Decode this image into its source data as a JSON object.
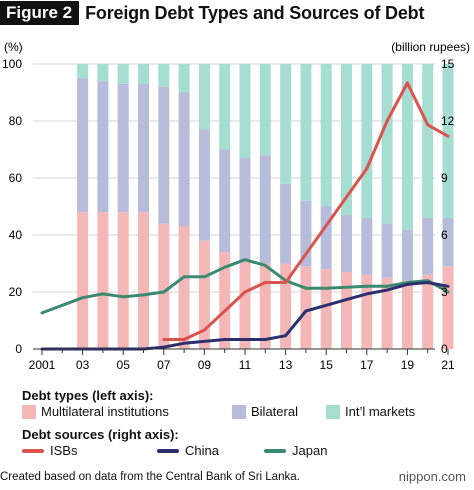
{
  "figure": {
    "badge": "Figure 2",
    "title": "Foreign Debt Types and Sources of Debt"
  },
  "axes": {
    "left_unit": "(%)",
    "right_unit": "(billion rupees)",
    "left_ticks": [
      "0",
      "20",
      "40",
      "60",
      "80",
      "100"
    ],
    "right_ticks": [
      "0",
      "3",
      "6",
      "9",
      "12",
      "15"
    ],
    "x_ticks": [
      "2001",
      "03",
      "05",
      "07",
      "09",
      "11",
      "13",
      "15",
      "17",
      "19",
      "21"
    ]
  },
  "legend": {
    "types_title": "Debt types (left axis):",
    "types": [
      {
        "label": "Multilateral institutions",
        "color": "#f3b7b7"
      },
      {
        "label": "Bilateral",
        "color": "#b8bcdb"
      },
      {
        "label": "Int’l markets",
        "color": "#a6ddd3"
      }
    ],
    "sources_title": "Debt sources (right axis):",
    "sources": [
      {
        "label": "ISBs",
        "color": "#d9534f"
      },
      {
        "label": "China",
        "color": "#2e2f6e"
      },
      {
        "label": "Japan",
        "color": "#3a8a72"
      }
    ]
  },
  "source_note": "Created based on data from the Central Bank of Sri Lanka.",
  "brand": "nippon.com",
  "chart_data": {
    "type": "bar+line",
    "years": [
      2001,
      2002,
      2003,
      2004,
      2005,
      2006,
      2007,
      2008,
      2009,
      2010,
      2011,
      2012,
      2013,
      2014,
      2015,
      2016,
      2017,
      2018,
      2019,
      2020,
      2021
    ],
    "bar_years": [
      2003,
      2004,
      2005,
      2006,
      2007,
      2008,
      2009,
      2010,
      2011,
      2012,
      2013,
      2014,
      2015,
      2016,
      2017,
      2018,
      2019,
      2020,
      2021
    ],
    "stacked_percent": {
      "multilateral": [
        48,
        48,
        48,
        48,
        44,
        43,
        38,
        34,
        31,
        30,
        30,
        29,
        28,
        27,
        26,
        25,
        24,
        26,
        29
      ],
      "bilateral": [
        47,
        46,
        45,
        45,
        48,
        47,
        39,
        36,
        36,
        38,
        28,
        23,
        22,
        20,
        20,
        19,
        18,
        20,
        17
      ],
      "intl_markets": [
        5,
        6,
        7,
        7,
        8,
        10,
        23,
        30,
        33,
        32,
        42,
        48,
        50,
        53,
        54,
        56,
        58,
        54,
        54
      ]
    },
    "sources_billion_rupees": {
      "ISBs": [
        null,
        null,
        null,
        null,
        null,
        null,
        0.5,
        0.5,
        1.0,
        2.0,
        3.0,
        3.5,
        3.5,
        5.0,
        6.5,
        8.0,
        9.5,
        12.0,
        14.0,
        11.8,
        11.2
      ],
      "China": [
        0,
        0,
        0,
        0,
        0,
        0,
        0.1,
        0.3,
        0.4,
        0.5,
        0.5,
        0.5,
        0.7,
        2.0,
        2.3,
        2.6,
        2.9,
        3.1,
        3.4,
        3.5,
        3.3
      ],
      "Japan": [
        1.9,
        2.3,
        2.7,
        2.9,
        2.75,
        2.85,
        3.0,
        3.8,
        3.8,
        4.3,
        4.7,
        4.4,
        3.6,
        3.2,
        3.2,
        3.25,
        3.3,
        3.3,
        3.5,
        3.6,
        3.0
      ]
    },
    "left_ylim": [
      0,
      100
    ],
    "right_ylim": [
      0,
      15
    ],
    "grid": "horizontal"
  }
}
